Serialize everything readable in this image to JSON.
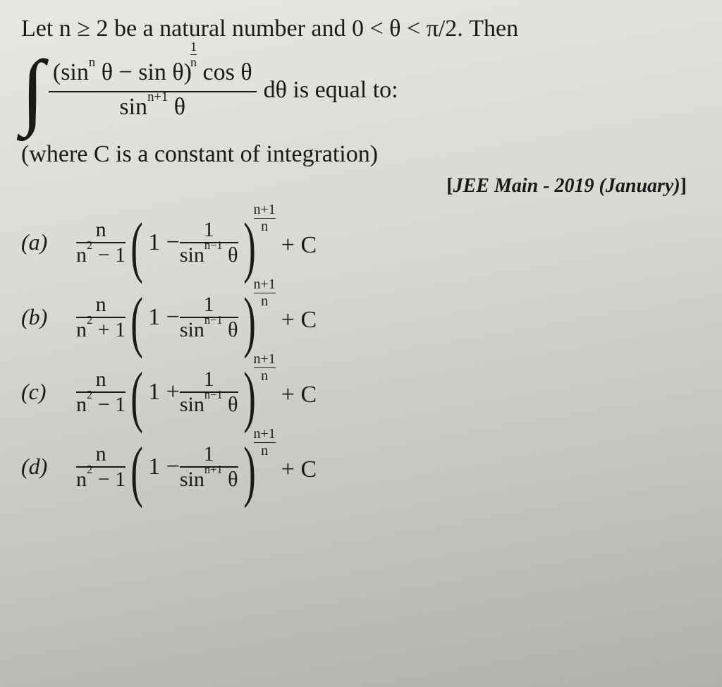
{
  "problem": {
    "statement_prefix": "Let n ≥ 2 be a natural number and 0 < θ < π/2. Then",
    "integrand_numerator_base": "sin",
    "integrand_sup_n": "n",
    "integrand_minus": " θ − sin θ",
    "integrand_outer_exp_num": "1",
    "integrand_outer_exp_den": "n",
    "integrand_cos": " cos θ",
    "integrand_denominator": "sin",
    "integrand_den_exp": "n+1",
    "integrand_den_theta": " θ",
    "dtheta": "dθ",
    "is_equal": " is equal to:",
    "where": "(where C is a constant of integration)",
    "source_bracket_open": "[",
    "source_label": "JEE Main - 2019 ",
    "source_paren": "(January)",
    "source_bracket_close": "]"
  },
  "options": {
    "a": {
      "label": "(a)",
      "coef_num": "n",
      "coef_den_left": "n",
      "coef_den_exp": "2",
      "coef_den_right": " − 1",
      "one": "1 − ",
      "inner_num": "1",
      "inner_den_base": "sin",
      "inner_den_exp": "n−1",
      "inner_den_theta": " θ",
      "exp_num": "n+1",
      "exp_den": "n",
      "plus_c": " + C"
    },
    "b": {
      "label": "(b)",
      "coef_num": "n",
      "coef_den_left": "n",
      "coef_den_exp": "2",
      "coef_den_right": " + 1",
      "one": "1 − ",
      "inner_num": "1",
      "inner_den_base": "sin",
      "inner_den_exp": "n−1",
      "inner_den_theta": " θ",
      "exp_num": "n+1",
      "exp_den": "n",
      "plus_c": " + C"
    },
    "c": {
      "label": "(c)",
      "coef_num": "n",
      "coef_den_left": "n",
      "coef_den_exp": "2",
      "coef_den_right": " − 1",
      "one": "1 + ",
      "inner_num": "1",
      "inner_den_base": "sin",
      "inner_den_exp": "n−1",
      "inner_den_theta": " θ",
      "exp_num": "n+1",
      "exp_den": "n",
      "plus_c": " + C"
    },
    "d": {
      "label": "(d)",
      "coef_num": "n",
      "coef_den_left": "n",
      "coef_den_exp": "2",
      "coef_den_right": " − 1",
      "one": "1 − ",
      "inner_num": "1",
      "inner_den_base": "sin",
      "inner_den_exp": "n+1",
      "inner_den_theta": " θ",
      "exp_num": "n+1",
      "exp_den": "n",
      "plus_c": " + C"
    }
  },
  "style": {
    "text_color": "#1a1a1a",
    "bg_start": "#e8e8e3",
    "bg_end": "#b0b0ac",
    "body_fontsize": 34,
    "source_fontsize": 28
  }
}
